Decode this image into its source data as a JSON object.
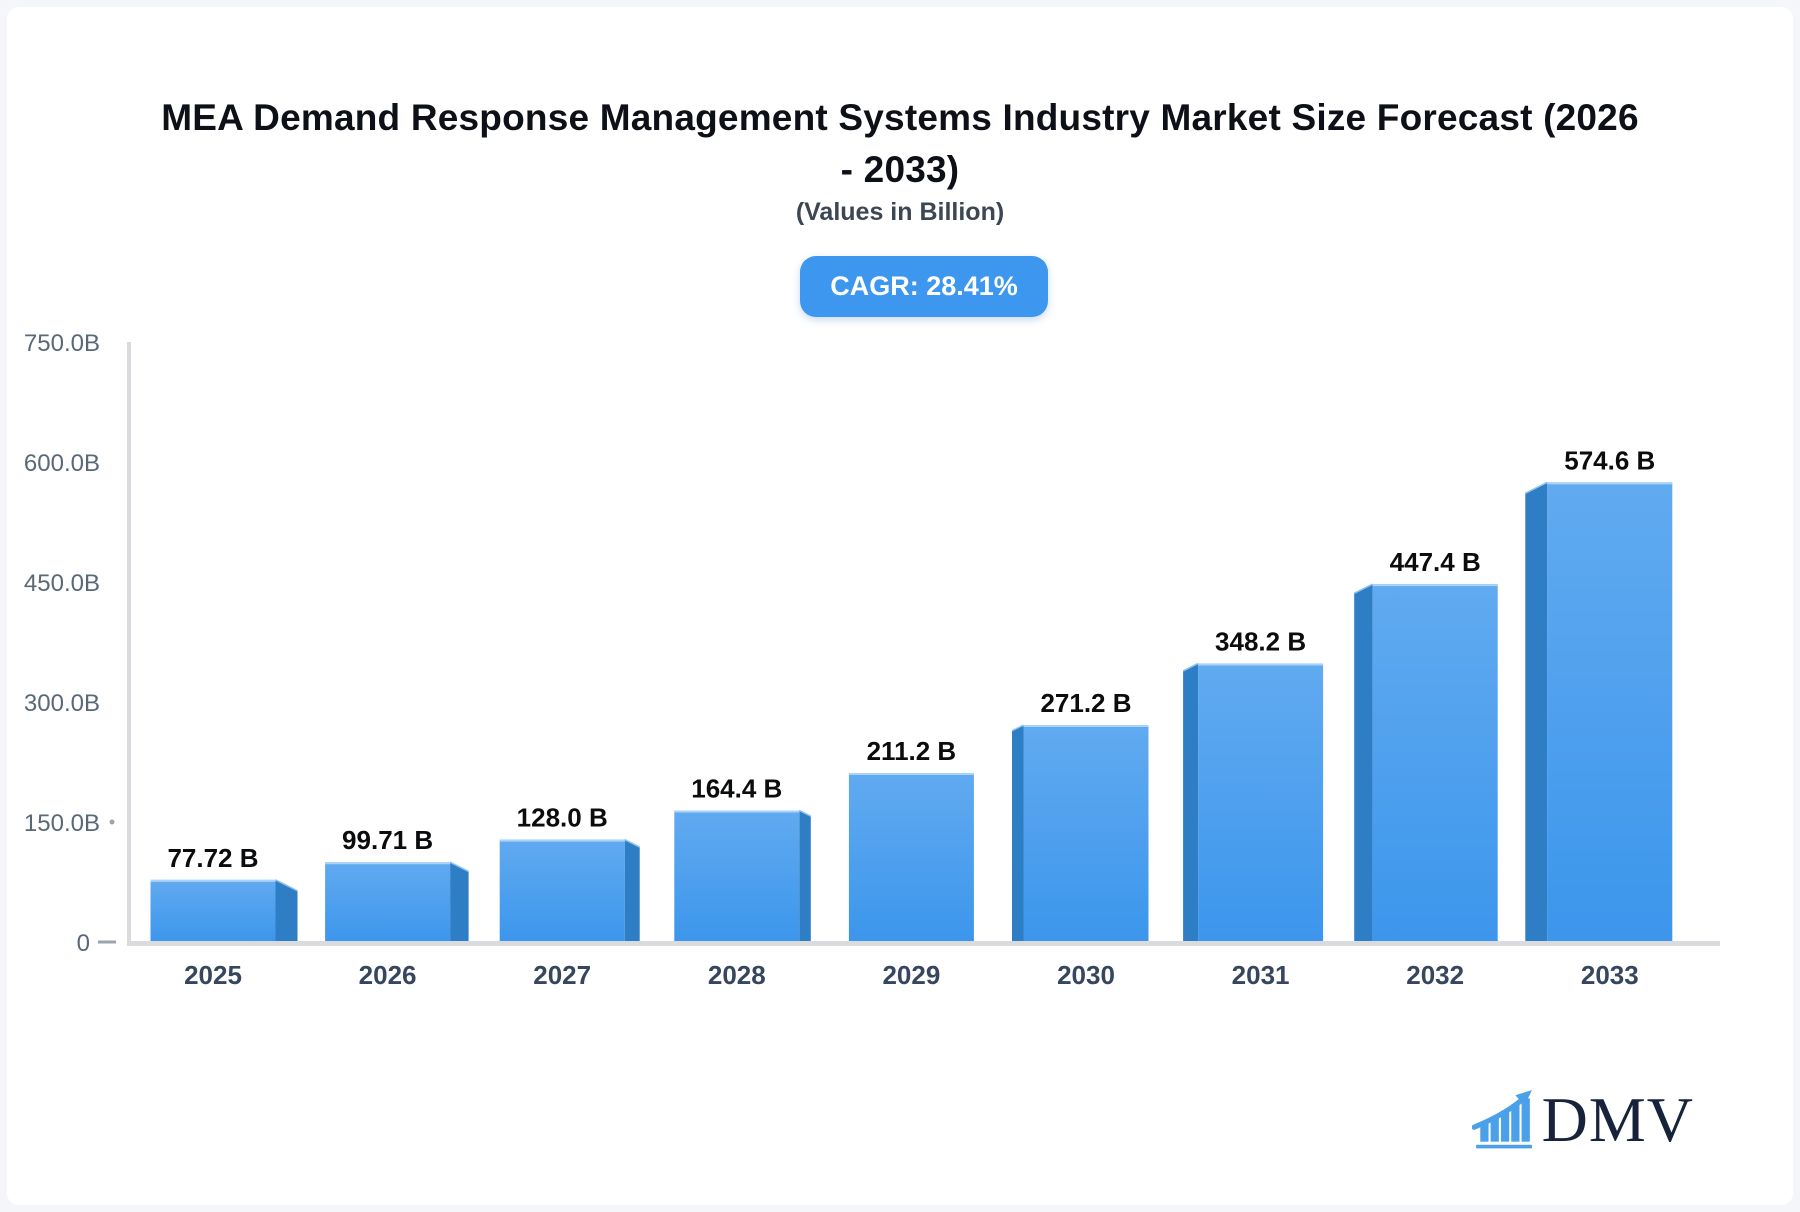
{
  "page": {
    "background": "#f4f6f9",
    "card_background": "#ffffff"
  },
  "header": {
    "title": "MEA Demand Response Management Systems Industry Market Size Forecast (2026 - 2033)",
    "title_line1": "MEA Demand Response Management Systems Industry Market Size Forecast (2026",
    "title_line2": "- 2033)",
    "subtitle": "(Values in Billion)",
    "cagr_badge": "CAGR: 28.41%",
    "badge_color": "#3e97ee"
  },
  "chart_data": {
    "type": "bar",
    "title": "MEA Demand Response Management Systems Industry Market Size Forecast (2026 - 2033)",
    "subtitle": "(Values in Billion)",
    "cagr_percent": 28.41,
    "unit": "Billion",
    "categories": [
      "2025",
      "2026",
      "2027",
      "2028",
      "2029",
      "2030",
      "2031",
      "2032",
      "2033"
    ],
    "values": [
      77.72,
      99.71,
      128.0,
      164.4,
      211.2,
      271.2,
      348.2,
      447.4,
      574.6
    ],
    "bar_labels": [
      "77.72 B",
      "99.71 B",
      "128.0 B",
      "164.4 B",
      "211.2 B",
      "271.2 B",
      "348.2 B",
      "447.4 B",
      "574.6 B"
    ],
    "ylim": [
      0,
      750
    ],
    "yticks": [
      {
        "label": "0",
        "value": 0
      },
      {
        "label": "150.0B",
        "value": 150
      },
      {
        "label": "300.0B",
        "value": 300
      },
      {
        "label": "450.0B",
        "value": 450
      },
      {
        "label": "600.0B",
        "value": 600
      },
      {
        "label": "750.0B",
        "value": 750
      }
    ],
    "grid": false,
    "legend": false,
    "style_3d": true,
    "bar_color_top": "#61aaf0",
    "bar_color_bottom": "#3c96ec",
    "bar_side_color": "#2e7ec6",
    "bar_top_highlight": "#a9d4f7",
    "axis_color": "#d9dbdf",
    "tick_mark_color": "#9aa4ae",
    "ytick_label_color": "#5a6878",
    "xtick_label_color": "#36465e",
    "value_label_color": "#0b0c0d"
  },
  "logo": {
    "text": "DMV",
    "icon": "growth-chart-icon",
    "text_color": "#16233b",
    "icon_color": "#4aa0e9"
  }
}
